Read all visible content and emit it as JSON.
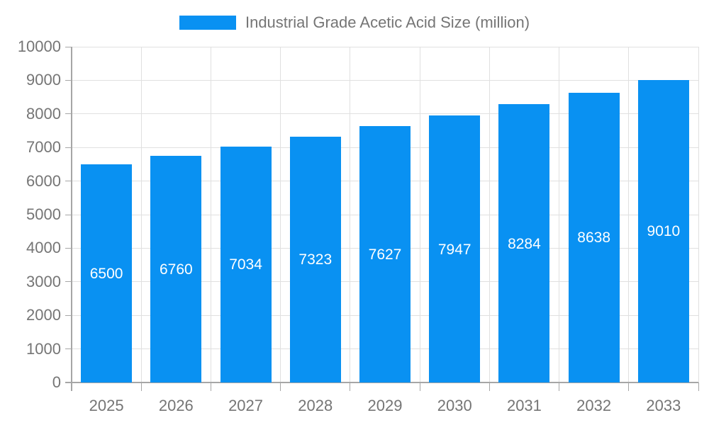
{
  "chart_data": {
    "type": "bar",
    "title": "Industrial Grade Acetic Acid Size (million)",
    "categories": [
      "2025",
      "2026",
      "2027",
      "2028",
      "2029",
      "2030",
      "2031",
      "2032",
      "2033"
    ],
    "values": [
      6500,
      6760,
      7034,
      7323,
      7627,
      7947,
      8284,
      8638,
      9010
    ],
    "xlabel": "",
    "ylabel": "",
    "ylim": [
      0,
      10000
    ],
    "ytick_step": 1000,
    "ytick_labels": [
      "0",
      "1000",
      "2000",
      "3000",
      "4000",
      "5000",
      "6000",
      "7000",
      "8000",
      "9000",
      "10000"
    ],
    "grid": true,
    "legend_position": "top-center",
    "legend_entries": [
      "Industrial Grade Acetic Acid Size (million)"
    ],
    "data_labels_inside_bars": true,
    "colors": {
      "bar": "#0991f2",
      "bar_label_text": "#ffffff",
      "axis_text": "#757575",
      "legend_text": "#757575",
      "gridline": "#e0e0e0",
      "axis_line": "#a6a6a6",
      "background": "#ffffff"
    }
  }
}
